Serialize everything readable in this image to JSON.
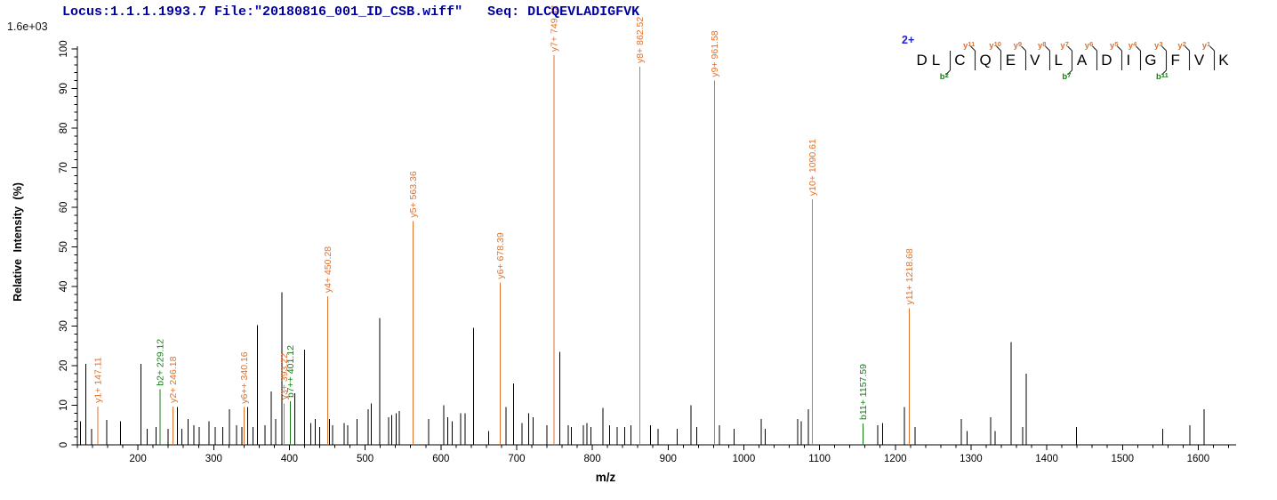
{
  "header": {
    "locus_file": "Locus:1.1.1.1993.7 File:\"20180816_001_ID_CSB.wiff\"",
    "seq_label": "Seq: DLCQEVLADIGFVK"
  },
  "chart_data": {
    "type": "bar",
    "subtype": "mass-spectrum-stick-plot",
    "title": "",
    "xlabel": "m/z",
    "ylabel": "Relative  Intensity  (%)",
    "y_scale_note": "1.6e+03",
    "xlim": [
      120,
      1650
    ],
    "ylim": [
      0,
      100
    ],
    "x_ticks": {
      "label_min": 200,
      "label_max": 1600,
      "major_step": 100,
      "minor_step": 20
    },
    "y_ticks": {
      "major_step": 10,
      "minor_step": 2
    },
    "grid": false,
    "legend": false,
    "colors": {
      "peak": "#000000",
      "y_ion": "#E0722C",
      "b_ion": "#177D17"
    },
    "labeled_ions": [
      {
        "ion": "y",
        "label": "y1+ 147.11",
        "mz": 147.11,
        "intensity": 9.7
      },
      {
        "ion": "b",
        "label": "b2+ 229.12",
        "mz": 229.12,
        "intensity": 14
      },
      {
        "ion": "y",
        "label": "y2+ 246.18",
        "mz": 246.18,
        "intensity": 9.7
      },
      {
        "ion": "y",
        "label": "y6++ 340.16",
        "mz": 340.16,
        "intensity": 9.5
      },
      {
        "ion": "y",
        "label": "y3+ 393.22",
        "mz": 393.22,
        "intensity": 10.5
      },
      {
        "ion": "b",
        "label": "b7++ 401.12",
        "mz": 401.12,
        "intensity": 11
      },
      {
        "ion": "y",
        "label": "y4+ 450.28",
        "mz": 450.28,
        "intensity": 37.5
      },
      {
        "ion": "y",
        "label": "y5+ 563.36",
        "mz": 563.36,
        "intensity": 56.5
      },
      {
        "ion": "y",
        "label": "y6+ 678.39",
        "mz": 678.39,
        "intensity": 41
      },
      {
        "ion": "y",
        "label": "y7+ 749.42",
        "mz": 749.42,
        "intensity": 98.4
      },
      {
        "ion": "y",
        "label": "y8+ 862.52",
        "mz": 862.52,
        "intensity": 95.5
      },
      {
        "ion": "y",
        "label": "y9+ 961.58",
        "mz": 961.58,
        "intensity": 92
      },
      {
        "ion": "y",
        "label": "y10+ 1090.61",
        "mz": 1090.61,
        "intensity": 62
      },
      {
        "ion": "b",
        "label": "b11+ 1157.59",
        "mz": 1157.59,
        "intensity": 5.4
      },
      {
        "ion": "y",
        "label": "y11+ 1218.68",
        "mz": 1218.68,
        "intensity": 34.5
      }
    ],
    "peaks_unlabeled": [
      [
        124,
        6
      ],
      [
        131,
        20.5
      ],
      [
        139,
        4
      ],
      [
        159,
        6.3
      ],
      [
        177,
        6
      ],
      [
        204,
        20.5
      ],
      [
        212,
        4
      ],
      [
        224,
        4.5
      ],
      [
        240,
        4
      ],
      [
        252,
        9.5
      ],
      [
        258,
        4
      ],
      [
        266,
        6.5
      ],
      [
        274,
        5
      ],
      [
        281,
        4.5
      ],
      [
        294,
        6
      ],
      [
        302,
        4.5
      ],
      [
        312,
        4.5
      ],
      [
        321,
        9
      ],
      [
        330,
        5
      ],
      [
        337,
        4.5
      ],
      [
        345,
        9.5
      ],
      [
        352,
        4.5
      ],
      [
        358,
        30.2
      ],
      [
        368,
        5
      ],
      [
        376,
        13.5
      ],
      [
        382,
        6.5
      ],
      [
        390,
        38.5
      ],
      [
        407,
        13
      ],
      [
        420,
        24
      ],
      [
        428,
        5.5
      ],
      [
        434,
        6.5
      ],
      [
        440,
        4.5
      ],
      [
        453,
        6.5
      ],
      [
        457,
        5
      ],
      [
        472,
        5.5
      ],
      [
        477,
        5
      ],
      [
        489,
        6.5
      ],
      [
        504,
        9
      ],
      [
        508,
        10.5
      ],
      [
        519,
        32
      ],
      [
        531,
        7
      ],
      [
        535,
        7.5
      ],
      [
        541,
        8
      ],
      [
        545,
        8.5
      ],
      [
        584,
        6.5
      ],
      [
        604,
        10
      ],
      [
        609,
        7
      ],
      [
        615,
        6
      ],
      [
        626,
        8
      ],
      [
        632,
        8
      ],
      [
        643,
        29.5
      ],
      [
        663,
        3.5
      ],
      [
        686,
        9.5
      ],
      [
        696,
        15.5
      ],
      [
        707,
        5.5
      ],
      [
        716,
        8
      ],
      [
        722,
        7
      ],
      [
        740,
        5
      ],
      [
        757,
        23.5
      ],
      [
        768,
        5
      ],
      [
        772,
        4.5
      ],
      [
        788,
        5
      ],
      [
        793,
        5.5
      ],
      [
        798,
        4.5
      ],
      [
        814,
        9.3
      ],
      [
        823,
        5
      ],
      [
        833,
        4.5
      ],
      [
        843,
        4.5
      ],
      [
        851,
        5
      ],
      [
        877,
        5
      ],
      [
        887,
        4
      ],
      [
        912,
        4
      ],
      [
        930,
        10
      ],
      [
        938,
        4.5
      ],
      [
        968,
        5
      ],
      [
        987,
        4
      ],
      [
        1023,
        6.5
      ],
      [
        1028,
        4
      ],
      [
        1071,
        6.5
      ],
      [
        1076,
        6
      ],
      [
        1085,
        9
      ],
      [
        1177,
        5
      ],
      [
        1183,
        5.5
      ],
      [
        1212,
        9.5
      ],
      [
        1226,
        4.5
      ],
      [
        1287,
        6.5
      ],
      [
        1295,
        3.5
      ],
      [
        1326,
        7
      ],
      [
        1332,
        3.5
      ],
      [
        1353,
        26
      ],
      [
        1368,
        4.5
      ],
      [
        1373,
        18
      ],
      [
        1439,
        4.5
      ],
      [
        1553,
        4
      ],
      [
        1589,
        5
      ],
      [
        1608,
        9
      ]
    ]
  },
  "peptide_panel": {
    "charge": "2+",
    "sequence": "DLCQEVLADIGFVK",
    "cleavages": [
      {
        "boundary": 2,
        "b": "b2"
      },
      {
        "boundary": 3,
        "y": "y11"
      },
      {
        "boundary": 4,
        "y": "y10"
      },
      {
        "boundary": 5,
        "y": "y9"
      },
      {
        "boundary": 6,
        "y": "y8"
      },
      {
        "boundary": 7,
        "y": "y7",
        "b": "b7"
      },
      {
        "boundary": 8,
        "y": "y6"
      },
      {
        "boundary": 9,
        "y": "y5"
      },
      {
        "boundary": 10,
        "y": "y4"
      },
      {
        "boundary": 11,
        "y": "y3",
        "b": "b11"
      },
      {
        "boundary": 12,
        "y": "y2"
      },
      {
        "boundary": 13,
        "y": "y1"
      }
    ]
  }
}
